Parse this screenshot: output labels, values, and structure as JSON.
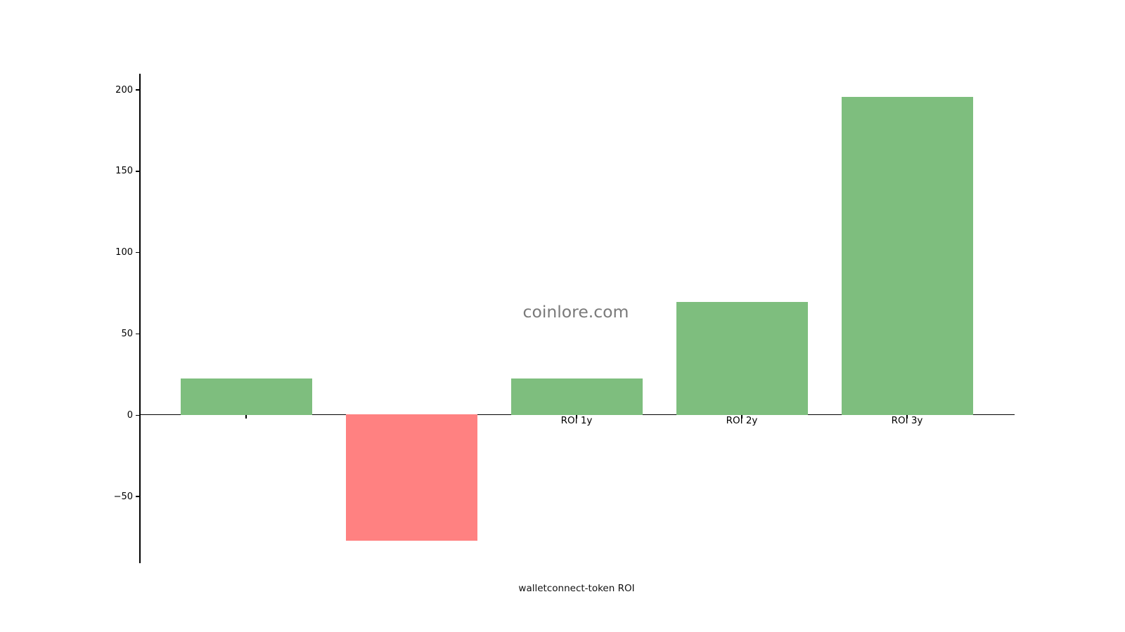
{
  "page": {
    "background_color": "#ffffff"
  },
  "watermark": {
    "text": "coinlore.com",
    "color": "#7a7a7a"
  },
  "chart_data": {
    "type": "bar",
    "title": "walletconnect-token ROI",
    "categories": [
      "",
      "",
      "ROI 1y",
      "ROI 2y",
      "ROI 3y"
    ],
    "values": [
      22.5,
      -77,
      22.5,
      69.7,
      195.7
    ],
    "y_ticks": [
      200,
      150,
      100,
      50,
      0,
      -50
    ],
    "ylim": [
      -91,
      210
    ],
    "xlabel": "",
    "ylabel": "",
    "grid": false,
    "legend": false,
    "positive_color": "#7ebe7e",
    "negative_color": "#ff8181",
    "axis_color": "#000000"
  }
}
